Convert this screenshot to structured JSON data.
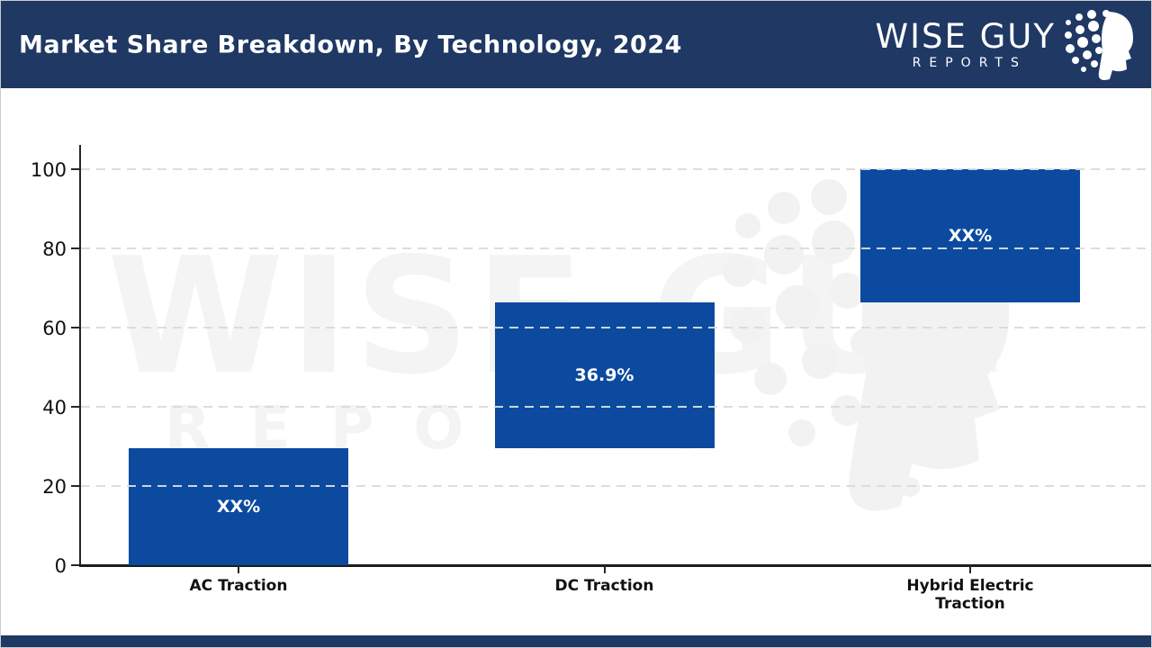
{
  "header": {
    "title": "Market Share Breakdown, By Technology, 2024",
    "logo": {
      "line1": "WISE GUY",
      "line2": "REPORTS"
    }
  },
  "watermark": {
    "line1": "WISE GUY",
    "line2": "REPORTS"
  },
  "colors": {
    "header_navy": "#1f3864",
    "bar_blue": "#0b4a9f",
    "bar_label_white": "#ffffff",
    "watermark_gray": "#f4f4f4",
    "gridline_gray": "#dbdbdb",
    "axis_black": "#262626"
  },
  "chart_data": {
    "type": "bar",
    "subtype": "floating-waterfall",
    "title": "Market Share Breakdown, By Technology, 2024",
    "categories": [
      "AC Traction",
      "DC Traction",
      "Hybrid Electric Traction"
    ],
    "series": [
      {
        "name": "Market share (%)",
        "segments": [
          {
            "category": "AC Traction",
            "from": 0,
            "to": 29.5,
            "label": "XX%"
          },
          {
            "category": "DC Traction",
            "from": 29.5,
            "to": 66.4,
            "label": "36.9%"
          },
          {
            "category": "Hybrid Electric Traction",
            "from": 66.4,
            "to": 100,
            "label": "XX%"
          }
        ]
      }
    ],
    "ylim": [
      0,
      100
    ],
    "yticks": [
      0,
      20,
      40,
      60,
      80,
      100
    ],
    "grid": "horizontal-dashed",
    "legend": "none"
  }
}
